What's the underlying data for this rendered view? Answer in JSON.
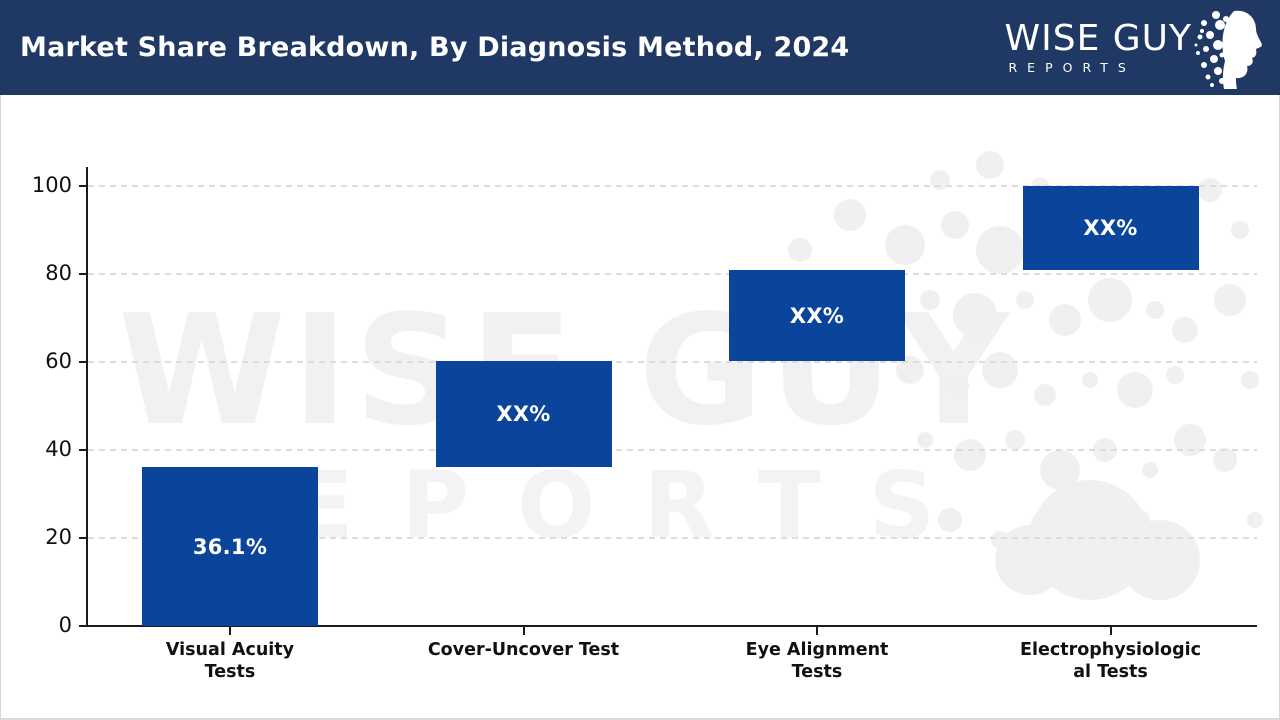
{
  "header": {
    "title": "Market Share Breakdown, By Diagnosis Method, 2024",
    "bg_color": "#1f3864",
    "logo": {
      "wordmark": "WISE GUY",
      "subtext": "REPORTS"
    }
  },
  "watermark": {
    "wordmark": "WISE GUY",
    "subtext": "REPORTS"
  },
  "chart_data": {
    "type": "bar",
    "subtype": "waterfall",
    "title": "Market Share Breakdown, By Diagnosis Method, 2024",
    "bar_color": "#0a449b",
    "grid": "horizontal-dashed",
    "legend": "none",
    "ylim": [
      0,
      105
    ],
    "y_ticks": [
      0,
      20,
      40,
      60,
      80,
      100
    ],
    "categories": [
      "Visual Acuity\nTests",
      "Cover-Uncover Test",
      "Eye Alignment\nTests",
      "Electrophysiologic\nal Tests"
    ],
    "segments": [
      {
        "category": "Visual Acuity Tests",
        "start": 0,
        "end": 36.1,
        "value_label": "36.1%"
      },
      {
        "category": "Cover-Uncover Test",
        "start": 36.1,
        "end": 60.2,
        "value_label": "XX%"
      },
      {
        "category": "Eye Alignment Tests",
        "start": 60.2,
        "end": 80.9,
        "value_label": "XX%"
      },
      {
        "category": "Electrophysiological Tests",
        "start": 80.9,
        "end": 100,
        "value_label": "XX%"
      }
    ]
  }
}
